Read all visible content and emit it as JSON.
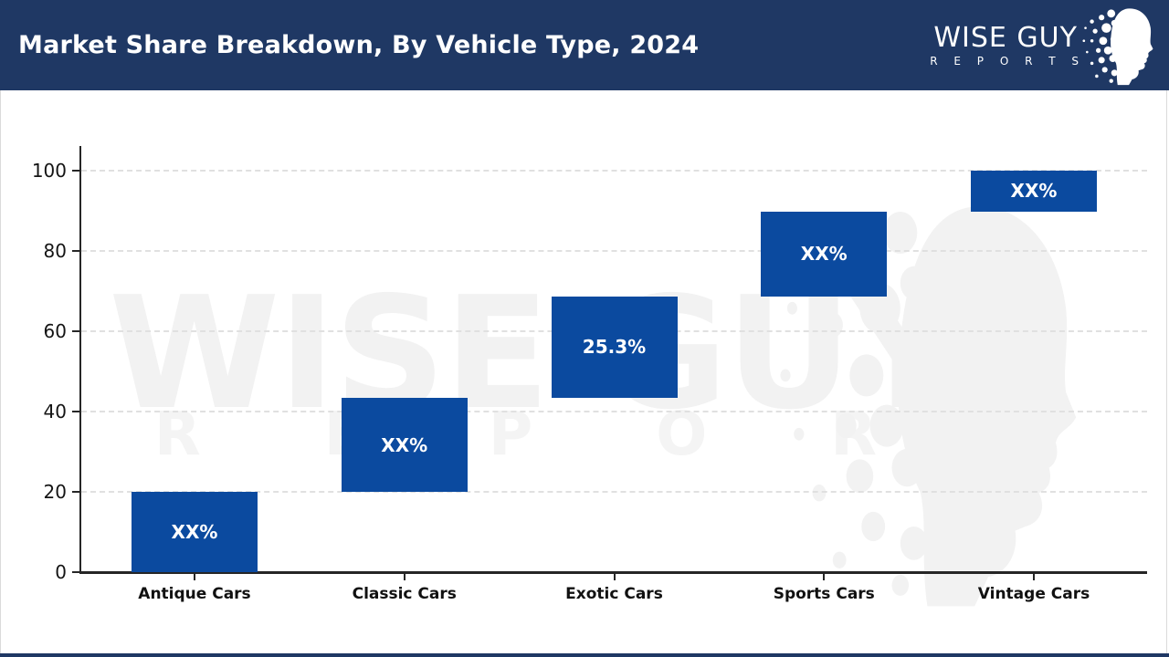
{
  "header": {
    "title": "Market Share Breakdown, By Vehicle Type, 2024",
    "logo": {
      "name": "WISE GUY",
      "subtitle": "R E P O R T S"
    }
  },
  "watermark": {
    "name": "WISE GUY",
    "subtitle": "R E P O R T S"
  },
  "colors": {
    "header_navy": "#1F3864",
    "bar_blue": "#0B4A9F",
    "axis": "#262626",
    "grid": "#e0e0e0",
    "watermark_gray": "#f2f2f2"
  },
  "chart_data": {
    "type": "bar",
    "subtype": "waterfall",
    "title": "Market Share Breakdown, By Vehicle Type, 2024",
    "categories": [
      "Antique Cars",
      "Classic Cars",
      "Exotic Cars",
      "Sports Cars",
      "Vintage Cars"
    ],
    "segments": [
      {
        "category": "Antique Cars",
        "start": 0,
        "end": 20.0,
        "value": 20.0,
        "label": "XX%"
      },
      {
        "category": "Classic Cars",
        "start": 20.0,
        "end": 43.4,
        "value": 23.4,
        "label": "XX%"
      },
      {
        "category": "Exotic Cars",
        "start": 43.4,
        "end": 68.7,
        "value": 25.3,
        "label": "25.3%"
      },
      {
        "category": "Sports Cars",
        "start": 68.7,
        "end": 89.8,
        "value": 21.1,
        "label": "XX%"
      },
      {
        "category": "Vintage Cars",
        "start": 89.8,
        "end": 100.0,
        "value": 10.2,
        "label": "XX%"
      }
    ],
    "xlabel": "",
    "ylabel": "",
    "ylim": [
      0,
      106
    ],
    "yticks": [
      0,
      20,
      40,
      60,
      80,
      100
    ],
    "grid": "horizontal-dashed",
    "legend": "none",
    "bar_color": "#0B4A9F",
    "bar_label_color": "#ffffff"
  }
}
